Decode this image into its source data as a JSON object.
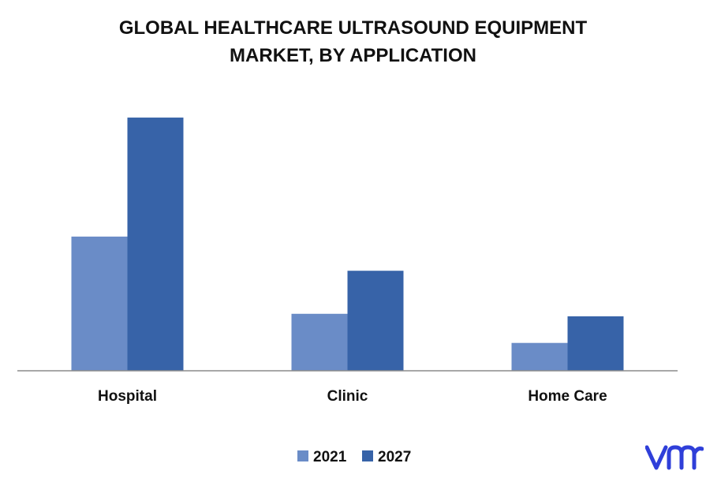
{
  "chart_data": {
    "type": "bar",
    "title_lines": [
      "GLOBAL HEALTHCARE ULTRASOUND EQUIPMENT",
      "MARKET, BY APPLICATION"
    ],
    "categories": [
      "Hospital",
      "Clinic",
      "Home Care"
    ],
    "series": [
      {
        "name": "2021",
        "values": [
          5.3,
          2.25,
          1.1
        ],
        "color": "#6a8cc7"
      },
      {
        "name": "2027",
        "values": [
          10.0,
          3.95,
          2.15
        ],
        "color": "#3763a8"
      }
    ],
    "ylim": [
      0,
      10.5
    ],
    "grid": false,
    "legend_position": "bottom-center"
  },
  "logo": {
    "name": "vmr-logo",
    "color": "#2f3fd9"
  }
}
